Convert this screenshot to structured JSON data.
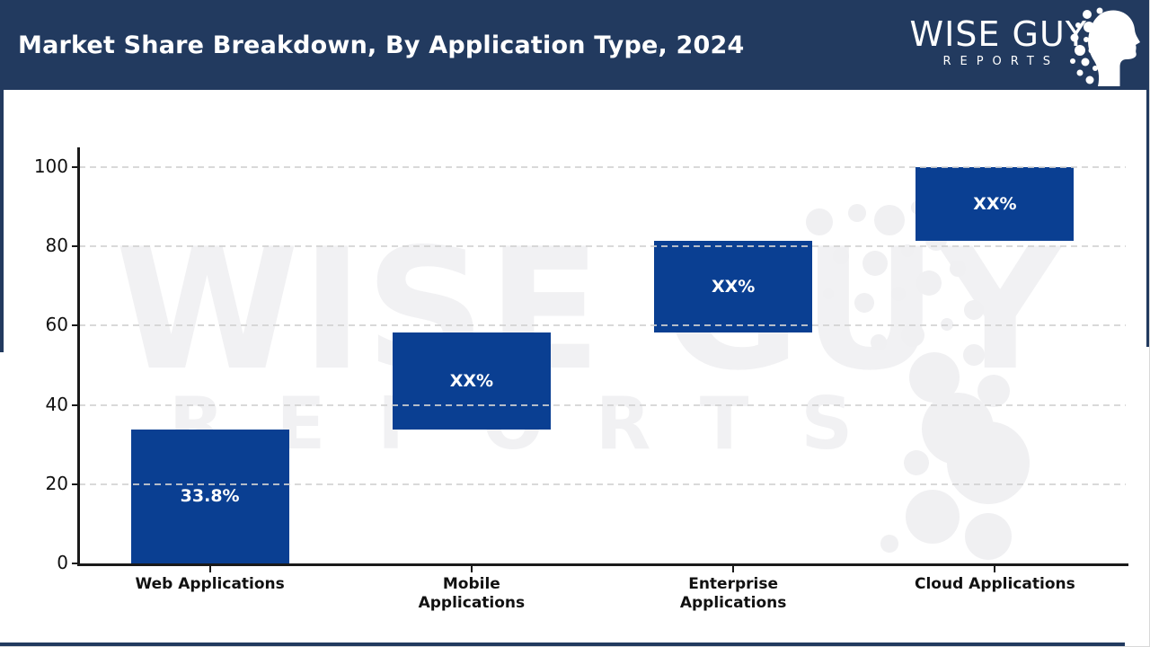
{
  "header": {
    "title": "Market Share Breakdown, By Application Type, 2024",
    "bg_color": "#223A5F",
    "logo": {
      "line1": "WISE GUY",
      "line2": "REPORTS"
    }
  },
  "watermark": {
    "line1": "WISE GUY",
    "line2": "REPORTS"
  },
  "chart_data": {
    "type": "bar",
    "subtype": "waterfall",
    "title": "Market Share Breakdown, By Application Type, 2024",
    "categories": [
      "Web Applications",
      "Mobile Applications",
      "Enterprise Applications",
      "Cloud Applications"
    ],
    "category_lines": [
      [
        "Web Applications"
      ],
      [
        "Mobile",
        "Applications"
      ],
      [
        "Enterprise",
        "Applications"
      ],
      [
        "Cloud Applications"
      ]
    ],
    "segments": [
      {
        "category": "Web Applications",
        "start": 0,
        "end": 33.8,
        "label": "33.8%"
      },
      {
        "category": "Mobile Applications",
        "start": 33.8,
        "end": 58.3,
        "label": "XX%"
      },
      {
        "category": "Enterprise Applications",
        "start": 58.3,
        "end": 81.4,
        "label": "XX%"
      },
      {
        "category": "Cloud Applications",
        "start": 81.4,
        "end": 100,
        "label": "XX%"
      }
    ],
    "ylabel": "",
    "xlabel": "",
    "ylim": [
      0,
      105
    ],
    "yticks": [
      0,
      20,
      40,
      60,
      80,
      100
    ],
    "grid": "horizontal-dashed",
    "legend": "none",
    "bar_color": "#0a3f92",
    "bar_label_color": "#ffffff"
  }
}
